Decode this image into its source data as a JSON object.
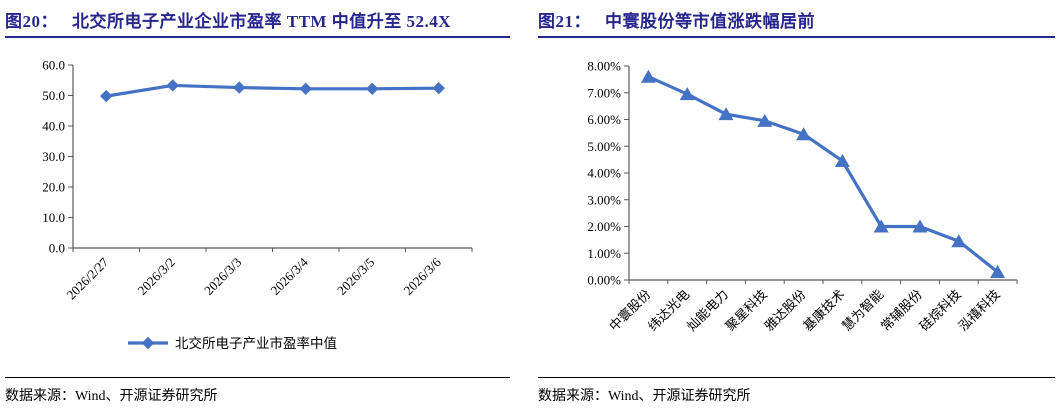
{
  "figure_left": {
    "fig_label": "图20：",
    "title": "北交所电子产业企业市盈率 TTM 中值升至 52.4X",
    "source_label": "数据来源：",
    "source_text": "Wind、开源证券研究所"
  },
  "figure_right": {
    "fig_label": "图21：",
    "title": "中寰股份等市值涨跌幅居前",
    "source_label": "数据来源：",
    "source_text": "Wind、开源证券研究所"
  },
  "colors": {
    "title_navy": "#26268E",
    "series_blue": "#4472C4",
    "axis_gray": "#595959"
  },
  "chart_data": [
    {
      "type": "line",
      "marker": "diamond",
      "title": "北交所电子产业企业市盈率TTM中值",
      "categories": [
        "2026/2/27",
        "2026/3/2",
        "2026/3/3",
        "2026/3/4",
        "2026/3/5",
        "2026/3/6"
      ],
      "series": [
        {
          "name": "北交所电子产业市盈率中值",
          "values": [
            49.8,
            53.3,
            52.6,
            52.2,
            52.2,
            52.4
          ]
        }
      ],
      "ylim": [
        0,
        60
      ],
      "ytick_step": 10,
      "ytick_format": "fixed1",
      "grid": false,
      "legend_position": "bottom",
      "legend_label": "北交所电子产业市盈率中值",
      "line_color": "#4472C4",
      "marker_color": "#4472C4",
      "axis_color": "#595959"
    },
    {
      "type": "line",
      "marker": "triangle",
      "title": "中寰股份等市值涨跌幅居前",
      "categories": [
        "中寰股份",
        "纬达光电",
        "灿能电力",
        "聚星科技",
        "雅达股份",
        "基康技术",
        "慧为智能",
        "常辅股份",
        "硅烷科技",
        "泓禧科技"
      ],
      "series": [
        {
          "name": "市值涨跌幅",
          "values": [
            7.6,
            6.95,
            6.2,
            5.95,
            5.45,
            4.45,
            2.0,
            2.0,
            1.45,
            0.3
          ]
        }
      ],
      "ylim": [
        0,
        8
      ],
      "ytick_step": 1,
      "ytick_format": "percent2",
      "grid": false,
      "legend_position": "none",
      "legend_label": "",
      "line_color": "#4472C4",
      "marker_color": "#4472C4",
      "axis_color": "#595959"
    }
  ]
}
